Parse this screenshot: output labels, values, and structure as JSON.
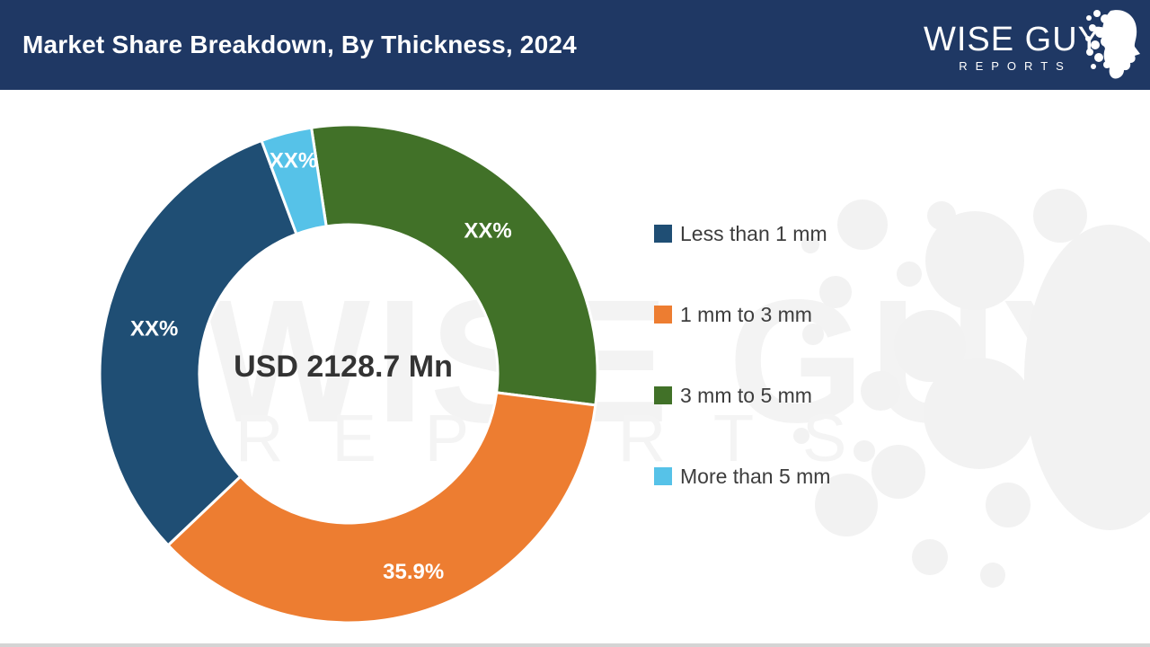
{
  "header": {
    "title": "Market Share Breakdown, By Thickness, 2024",
    "bg_color": "#1f3864",
    "logo": {
      "line1": "WISE GUY",
      "line2": "REPORTS"
    }
  },
  "watermark": {
    "line1": "WISE GUY",
    "line2": "REPORTS"
  },
  "chart_data": {
    "type": "pie",
    "variant": "donut",
    "title": "Market Share Breakdown, By Thickness, 2024",
    "center_label": "USD 2128.7 Mn",
    "legend_position": "right",
    "start_angle_deg": -8.6,
    "draw_order": [
      2,
      1,
      0,
      3
    ],
    "segments": [
      {
        "label": "Less than 1 mm",
        "color": "#1f4e74",
        "value_pct": 31.4,
        "display": "XX%",
        "label_radius": 222
      },
      {
        "label": "1 mm to 3 mm",
        "color": "#ed7d31",
        "value_pct": 35.9,
        "display": "35.9%",
        "label_radius": 232
      },
      {
        "label": "3 mm to 5 mm",
        "color": "#417128",
        "value_pct": 29.4,
        "display": "XX%",
        "label_radius": 222
      },
      {
        "label": "More than 5 mm",
        "color": "#56c2e8",
        "value_pct": 3.3,
        "display": "XX%",
        "label_radius": 245
      }
    ]
  }
}
